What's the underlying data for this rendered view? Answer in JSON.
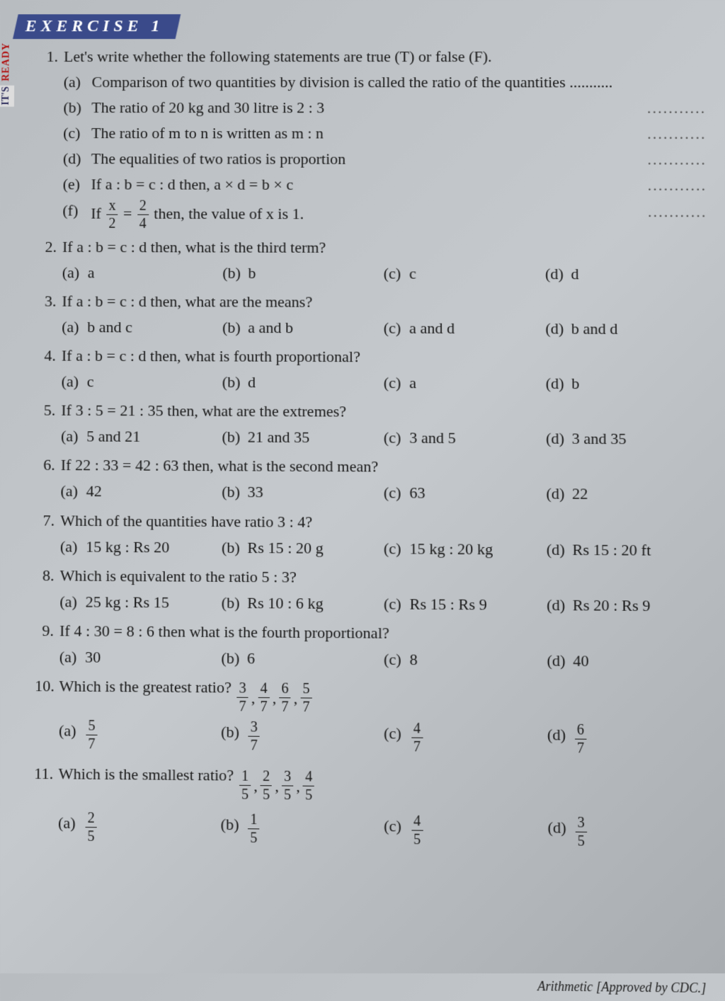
{
  "exercise_label": "EXERCISE 1",
  "side_its": "IT'S",
  "side_ready": "READY",
  "q1": {
    "num": "1.",
    "prompt": "Let's write whether the following statements are true (T) or false (F).",
    "a": {
      "lbl": "(a)",
      "txt": "Comparison of two quantities by division is called the ratio of the quantities ...........",
      "dots": ""
    },
    "b": {
      "lbl": "(b)",
      "txt": "The ratio of 20 kg and 30 litre is 2 : 3",
      "dots": "..........."
    },
    "c": {
      "lbl": "(c)",
      "txt": "The ratio of m to n is written as m : n",
      "dots": "..........."
    },
    "d": {
      "lbl": "(d)",
      "txt": "The equalities of two ratios is proportion",
      "dots": "..........."
    },
    "e": {
      "lbl": "(e)",
      "txt": "If a : b = c : d then, a × d = b × c",
      "dots": "..........."
    },
    "f": {
      "lbl": "(f)",
      "pre": "If ",
      "fx_n": "x",
      "fx_d": "2",
      "eq": " = ",
      "f2_n": "2",
      "f2_d": "4",
      "post": " then, the value of x is 1.",
      "dots": "..........."
    }
  },
  "q2": {
    "num": "2.",
    "prompt": "If a : b = c : d then, what is the third term?",
    "a": {
      "ol": "(a)",
      "ot": "a"
    },
    "b": {
      "ol": "(b)",
      "ot": "b"
    },
    "c": {
      "ol": "(c)",
      "ot": "c"
    },
    "d": {
      "ol": "(d)",
      "ot": "d"
    }
  },
  "q3": {
    "num": "3.",
    "prompt": "If a : b = c : d then, what are the means?",
    "a": {
      "ol": "(a)",
      "ot": "b and c"
    },
    "b": {
      "ol": "(b)",
      "ot": "a and b"
    },
    "c": {
      "ol": "(c)",
      "ot": "a and d"
    },
    "d": {
      "ol": "(d)",
      "ot": "b and d"
    }
  },
  "q4": {
    "num": "4.",
    "prompt": "If a : b = c : d then, what is fourth proportional?",
    "a": {
      "ol": "(a)",
      "ot": "c"
    },
    "b": {
      "ol": "(b)",
      "ot": "d"
    },
    "c": {
      "ol": "(c)",
      "ot": "a"
    },
    "d": {
      "ol": "(d)",
      "ot": "b"
    }
  },
  "q5": {
    "num": "5.",
    "prompt": "If 3 : 5 = 21 : 35 then, what are the extremes?",
    "a": {
      "ol": "(a)",
      "ot": "5 and 21"
    },
    "b": {
      "ol": "(b)",
      "ot": "21 and 35"
    },
    "c": {
      "ol": "(c)",
      "ot": "3 and 5"
    },
    "d": {
      "ol": "(d)",
      "ot": "3 and 35"
    }
  },
  "q6": {
    "num": "6.",
    "prompt": "If 22 : 33 = 42 : 63 then, what is the second mean?",
    "a": {
      "ol": "(a)",
      "ot": "42"
    },
    "b": {
      "ol": "(b)",
      "ot": "33"
    },
    "c": {
      "ol": "(c)",
      "ot": "63"
    },
    "d": {
      "ol": "(d)",
      "ot": "22"
    }
  },
  "q7": {
    "num": "7.",
    "prompt": "Which of the quantities have ratio 3 : 4?",
    "a": {
      "ol": "(a)",
      "ot": "15 kg : Rs 20"
    },
    "b": {
      "ol": "(b)",
      "ot": "Rs 15 : 20 g"
    },
    "c": {
      "ol": "(c)",
      "ot": "15 kg : 20 kg"
    },
    "d": {
      "ol": "(d)",
      "ot": "Rs 15 : 20 ft"
    }
  },
  "q8": {
    "num": "8.",
    "prompt": "Which is equivalent to the ratio 5 : 3?",
    "a": {
      "ol": "(a)",
      "ot": "25 kg : Rs 15"
    },
    "b": {
      "ol": "(b)",
      "ot": "Rs 10 : 6 kg"
    },
    "c": {
      "ol": "(c)",
      "ot": "Rs 15 : Rs 9"
    },
    "d": {
      "ol": "(d)",
      "ot": "Rs 20 : Rs 9"
    }
  },
  "q9": {
    "num": "9.",
    "prompt": "If 4 : 30 = 8 : 6 then what is the fourth proportional?",
    "a": {
      "ol": "(a)",
      "ot": "30"
    },
    "b": {
      "ol": "(b)",
      "ot": "6"
    },
    "c": {
      "ol": "(c)",
      "ot": "8"
    },
    "d": {
      "ol": "(d)",
      "ot": "40"
    }
  },
  "q10": {
    "num": "10.",
    "prompt_pre": "Which is the greatest ratio? ",
    "list": [
      {
        "n": "3",
        "d": "7"
      },
      {
        "n": "4",
        "d": "7"
      },
      {
        "n": "6",
        "d": "7"
      },
      {
        "n": "5",
        "d": "7"
      }
    ],
    "a": {
      "ol": "(a)",
      "n": "5",
      "d": "7"
    },
    "b": {
      "ol": "(b)",
      "n": "3",
      "d": "7"
    },
    "c": {
      "ol": "(c)",
      "n": "4",
      "d": "7"
    },
    "d": {
      "ol": "(d)",
      "n": "6",
      "d": "7"
    }
  },
  "q11": {
    "num": "11.",
    "prompt_pre": "Which is the smallest ratio? ",
    "list": [
      {
        "n": "1",
        "d": "5"
      },
      {
        "n": "2",
        "d": "5"
      },
      {
        "n": "3",
        "d": "5"
      },
      {
        "n": "4",
        "d": "5"
      }
    ],
    "a": {
      "ol": "(a)",
      "n": "2",
      "d": "5"
    },
    "b": {
      "ol": "(b)",
      "n": "1",
      "d": "5"
    },
    "c": {
      "ol": "(c)",
      "n": "4",
      "d": "5"
    },
    "d": {
      "ol": "(d)",
      "n": "3",
      "d": "5"
    }
  },
  "footer": "Arithmetic [Approved by CDC.]"
}
